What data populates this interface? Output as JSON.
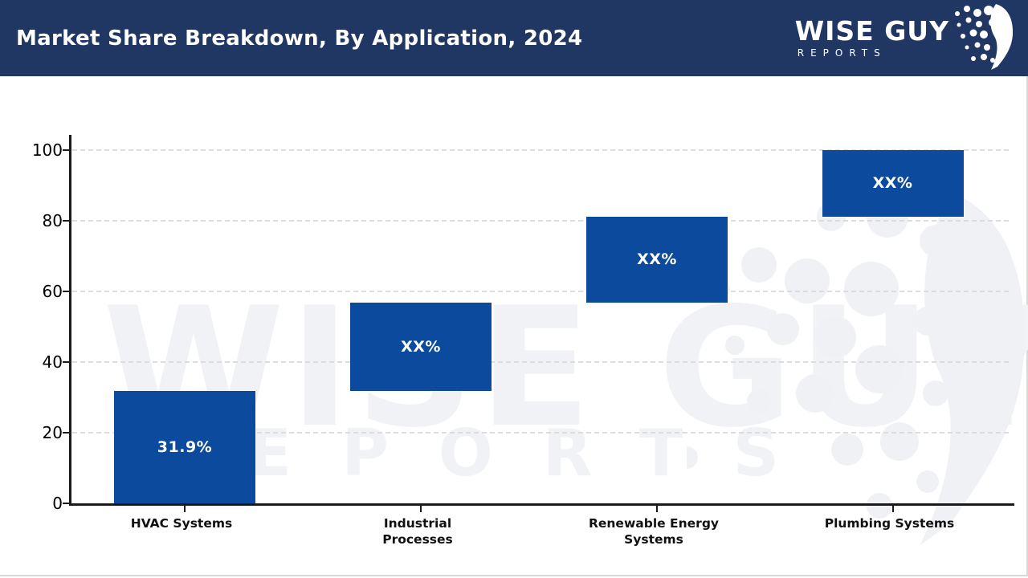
{
  "header": {
    "title": "Market Share Breakdown, By Application, 2024",
    "logo": {
      "line1": "WISE GUY",
      "line2": "REPORTS"
    }
  },
  "watermark": {
    "line1": "WISE GUY",
    "line2": "REPORTS"
  },
  "colors": {
    "header_bg": "#203763",
    "bar": "#0b4a9d",
    "grid": "#dcdcdc",
    "axis": "#1a1a1a",
    "bar_label": "#ffffff",
    "watermark": "#f1f2f5"
  },
  "chart_data": {
    "type": "bar",
    "subtype": "waterfall",
    "title": "Market Share Breakdown, By Application, 2024",
    "categories": [
      "HVAC Systems",
      "Industrial Processes",
      "Renewable Energy Systems",
      "Plumbing Systems"
    ],
    "segments": [
      {
        "category": "HVAC Systems",
        "start": 0,
        "end": 31.9,
        "label": "31.9%"
      },
      {
        "category": "Industrial Processes",
        "start": 31.9,
        "end": 56.8,
        "label": "XX%"
      },
      {
        "category": "Renewable Energy Systems",
        "start": 56.8,
        "end": 81.2,
        "label": "XX%"
      },
      {
        "category": "Plumbing Systems",
        "start": 81.2,
        "end": 100,
        "label": "XX%"
      }
    ],
    "y_ticks": [
      0,
      20,
      40,
      60,
      80,
      100
    ],
    "ylim": [
      0,
      105
    ],
    "xlabel": "",
    "ylabel": "",
    "grid": "dashed-horizontal",
    "legend": "none"
  }
}
